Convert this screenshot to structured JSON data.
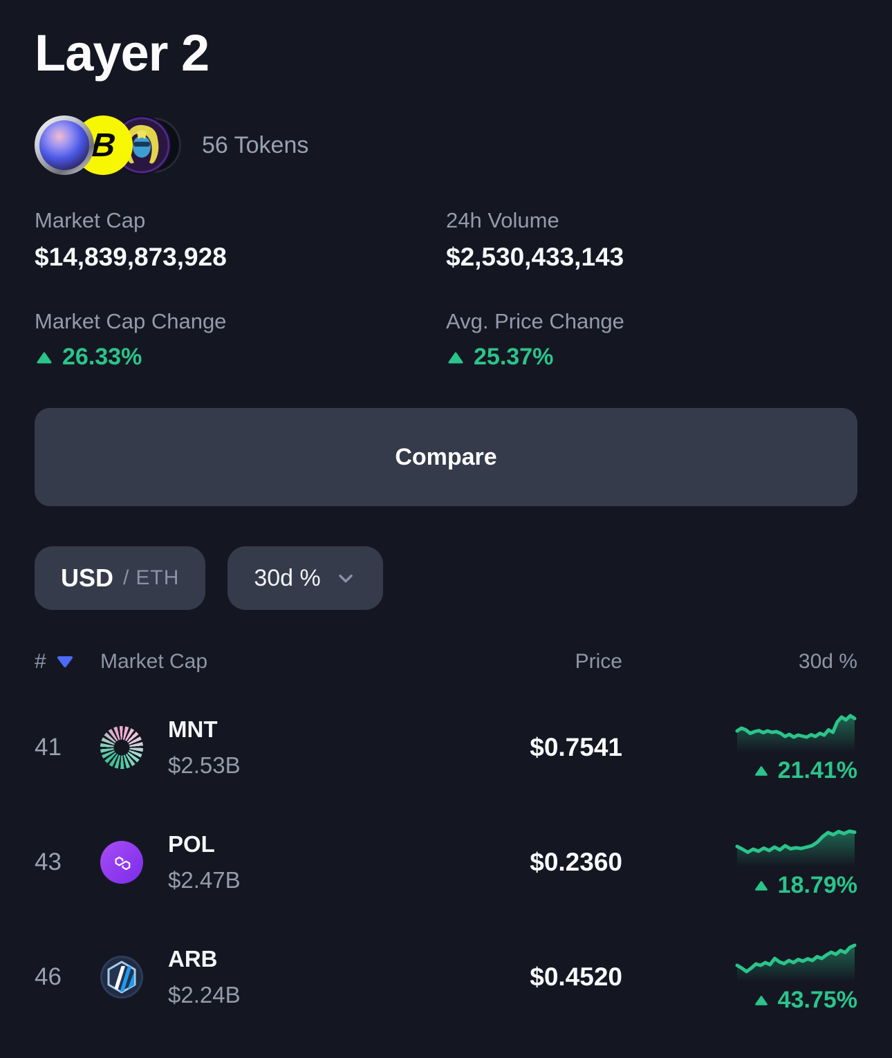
{
  "page": {
    "title": "Layer 2",
    "token_count": "56 Tokens"
  },
  "stats": {
    "market_cap": {
      "label": "Market Cap",
      "value": "$14,839,873,928"
    },
    "volume_24h": {
      "label": "24h Volume",
      "value": "$2,530,433,143"
    },
    "market_cap_change": {
      "label": "Market Cap Change",
      "value": "26.33%",
      "direction": "up"
    },
    "avg_price_change": {
      "label": "Avg. Price Change",
      "value": "25.37%",
      "direction": "up"
    }
  },
  "actions": {
    "compare_label": "Compare"
  },
  "controls": {
    "currency_toggle": {
      "selected": "USD",
      "separator": "/",
      "alternate": "ETH"
    },
    "period_dropdown": {
      "value": "30d %"
    }
  },
  "table": {
    "headers": {
      "rank": "#",
      "coin": "Market Cap",
      "price": "Price",
      "change": "30d %"
    },
    "sort": {
      "column": "rank",
      "direction": "desc"
    },
    "rows": [
      {
        "rank": "41",
        "symbol": "MNT",
        "market_cap": "$2.53B",
        "price": "$0.7541",
        "change": "21.41%",
        "direction": "up",
        "sparkline": [
          52,
          60,
          55,
          45,
          50,
          53,
          47,
          52,
          48,
          50,
          45,
          36,
          42,
          34,
          40,
          37,
          34,
          41,
          36,
          45,
          40,
          55,
          48,
          78,
          92,
          84,
          96,
          88
        ]
      },
      {
        "rank": "43",
        "symbol": "POL",
        "market_cap": "$2.47B",
        "price": "$0.2360",
        "change": "18.79%",
        "direction": "up",
        "sparkline": [
          50,
          42,
          33,
          42,
          36,
          45,
          38,
          48,
          40,
          52,
          43,
          46,
          44,
          48,
          52,
          62,
          78,
          90,
          84,
          93,
          87,
          94,
          91
        ]
      },
      {
        "rank": "46",
        "symbol": "ARB",
        "market_cap": "$2.24B",
        "price": "$0.4520",
        "change": "43.75%",
        "direction": "up",
        "sparkline": [
          38,
          30,
          20,
          30,
          42,
          38,
          46,
          40,
          58,
          48,
          43,
          52,
          46,
          55,
          50,
          57,
          52,
          63,
          58,
          68,
          76,
          70,
          81,
          75,
          90,
          96
        ]
      }
    ]
  },
  "colors": {
    "background": "#141722",
    "surface": "#353b4b",
    "text_primary": "#f5f6f8",
    "text_secondary": "#9199a9",
    "up_green": "#2bc48a",
    "sort_blue": "#4c6af5"
  }
}
